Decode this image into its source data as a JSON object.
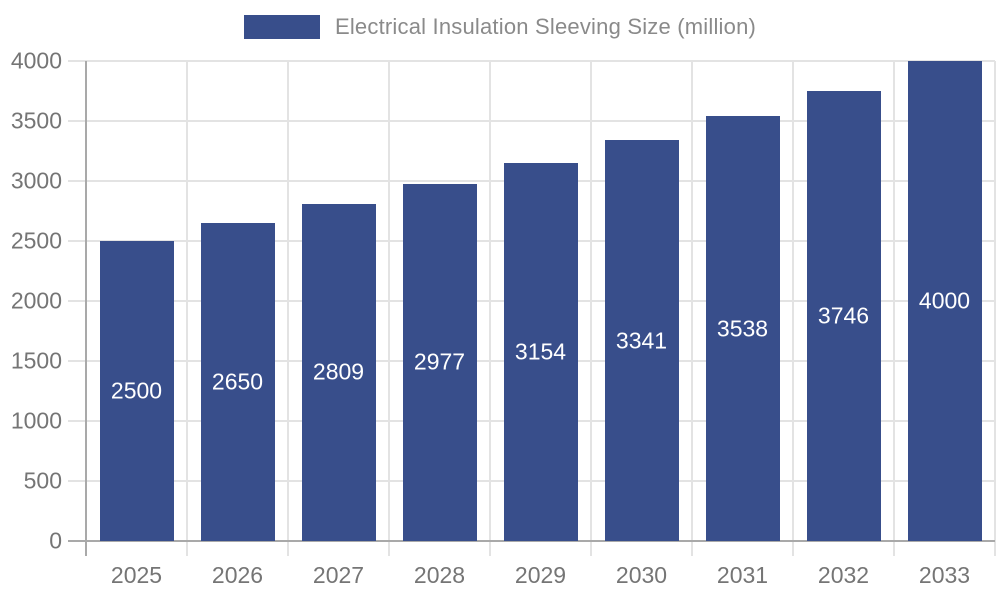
{
  "legend": {
    "label": "Electrical Insulation Sleeving Size (million)"
  },
  "chart_data": {
    "type": "bar",
    "title": "Electrical Insulation Sleeving Size (million)",
    "categories": [
      "2025",
      "2026",
      "2027",
      "2028",
      "2029",
      "2030",
      "2031",
      "2032",
      "2033"
    ],
    "values": [
      2500,
      2650,
      2809,
      2977,
      3154,
      3341,
      3538,
      3746,
      4000
    ],
    "xlabel": "",
    "ylabel": "",
    "ylim": [
      0,
      4000
    ],
    "ytick_step": 500,
    "grid": true,
    "legend_position": "top-center",
    "bar_label_position": "center-inside",
    "colors": {
      "bar": "#384E8B",
      "bar_label": "#FFFFFF",
      "axis_line": "#A9A9A9",
      "grid_line": "#E3E3E3",
      "tick_label": "#757575",
      "legend_text": "#8A8A8A",
      "background": "#FFFFFF"
    }
  }
}
